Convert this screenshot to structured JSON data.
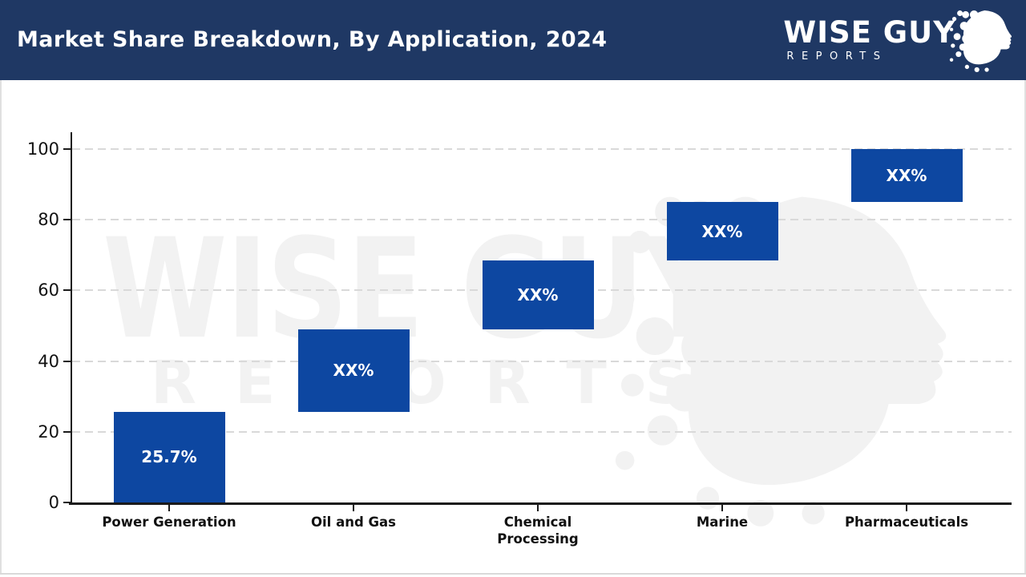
{
  "header": {
    "title": "Market Share Breakdown, By Application, 2024",
    "logo": {
      "name": "WISE GUY",
      "sub": "REPORTS"
    }
  },
  "watermark": {
    "name": "WISE GUY",
    "sub": "REPORTS"
  },
  "chart_data": {
    "type": "bar",
    "subtype": "waterfall",
    "title": "Market Share Breakdown, By Application, 2024",
    "categories": [
      "Power Generation",
      "Oil and Gas",
      "Chemical Processing",
      "Marine",
      "Pharmaceuticals"
    ],
    "tick_labels": [
      "Power Generation",
      "Oil and Gas",
      "Chemical\nProcessing",
      "Marine",
      "Pharmaceuticals"
    ],
    "bars": [
      {
        "category": "Power Generation",
        "start": 0,
        "end": 25.7,
        "label": "25.7%"
      },
      {
        "category": "Oil and Gas",
        "start": 25.7,
        "end": 49.0,
        "label": "XX%"
      },
      {
        "category": "Chemical Processing",
        "start": 49.0,
        "end": 68.5,
        "label": "XX%"
      },
      {
        "category": "Marine",
        "start": 68.5,
        "end": 85.0,
        "label": "XX%"
      },
      {
        "category": "Pharmaceuticals",
        "start": 85.0,
        "end": 100.0,
        "label": "XX%"
      }
    ],
    "xlabel": "",
    "ylabel": "",
    "ylim": [
      0,
      100
    ],
    "yticks": [
      0,
      20,
      40,
      60,
      80,
      100
    ],
    "grid": "horizontal-dashed",
    "legend": "none",
    "bar_color": "#0d47a1",
    "bar_label_color": "#ffffff"
  },
  "colors": {
    "header_bg": "#1f3864",
    "bar": "#0d47a1",
    "watermark": "#f2f2f2",
    "gridline": "#d9d9d9",
    "axis": "#1a1a1a"
  }
}
